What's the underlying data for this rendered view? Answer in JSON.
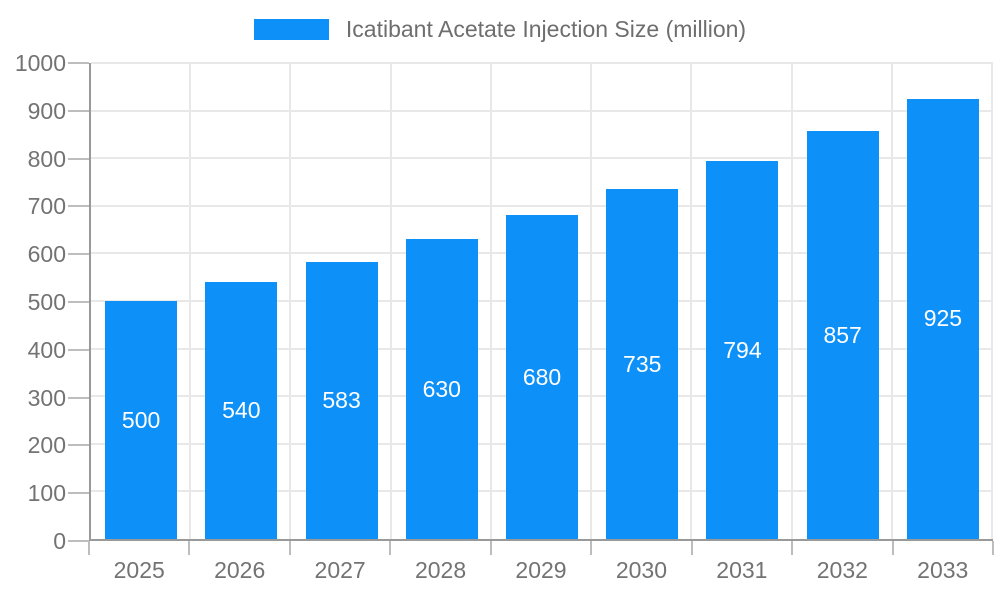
{
  "chart_data": {
    "type": "bar",
    "legend_label": "Icatibant Acetate Injection Size (million)",
    "legend_position": "top",
    "categories": [
      "2025",
      "2026",
      "2027",
      "2028",
      "2029",
      "2030",
      "2031",
      "2032",
      "2033"
    ],
    "values": [
      500,
      540,
      583,
      630,
      680,
      735,
      794,
      857,
      925
    ],
    "value_labels": [
      "500",
      "540",
      "583",
      "630",
      "680",
      "735",
      "794",
      "857",
      "925"
    ],
    "ylim": [
      0,
      1000
    ],
    "ytick_step": 100,
    "grid": true,
    "xlabel": "",
    "ylabel": "",
    "colors": {
      "bar": "#0e90f9",
      "value_label": "#ffffff",
      "axis_line": "#999999",
      "grid_line": "#e8e8e8",
      "tick_line": "#bdbdbd",
      "tick_text": "#737373",
      "legend_text": "#6e6e6e",
      "background": "#ffffff"
    }
  }
}
